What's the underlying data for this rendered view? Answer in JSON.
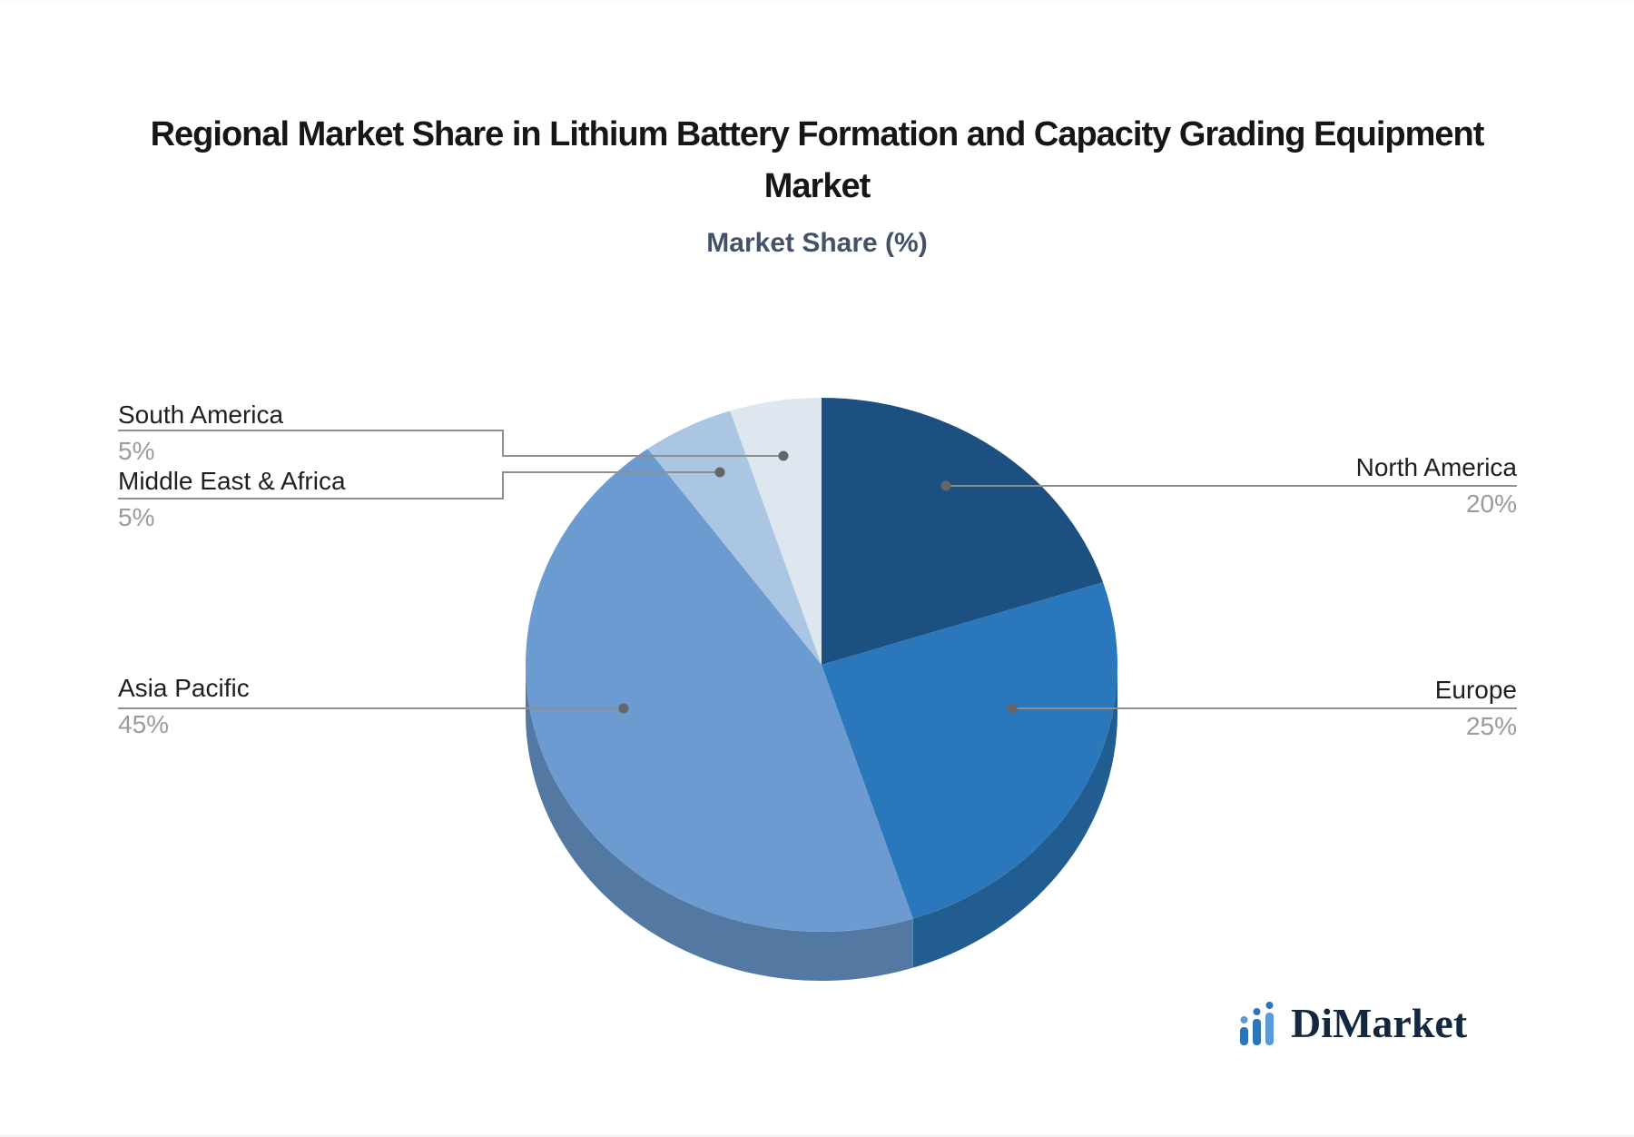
{
  "header": {
    "title": "Regional Market Share in Lithium Battery Formation and Capacity Grading Equipment Market",
    "subtitle": "Market Share (%)"
  },
  "brand": {
    "label": "DiMarket",
    "icon": "bar-chart-logo-icon"
  },
  "chart_data": {
    "type": "pie",
    "style": "3d",
    "title": "Regional Market Share in Lithium Battery Formation and Capacity Grading Equipment Market",
    "subtitle": "Market Share (%)",
    "unit": "%",
    "start_angle_deg": 0,
    "direction": "clockwise",
    "legend_position": "callout-labels",
    "slices": [
      {
        "label": "North America",
        "value": 20,
        "display": "20%",
        "color": "#1b5080"
      },
      {
        "label": "Europe",
        "value": 25,
        "display": "25%",
        "color": "#2b77bb"
      },
      {
        "label": "Asia Pacific",
        "value": 45,
        "display": "45%",
        "color": "#6b9bd0"
      },
      {
        "label": "Middle East & Africa",
        "value": 5,
        "display": "5%",
        "color": "#aac6e3"
      },
      {
        "label": "South America",
        "value": 5,
        "display": "5%",
        "color": "#dee7f0"
      }
    ],
    "connector_color": "#8f8f8f",
    "connector_dot_color": "#666666"
  }
}
